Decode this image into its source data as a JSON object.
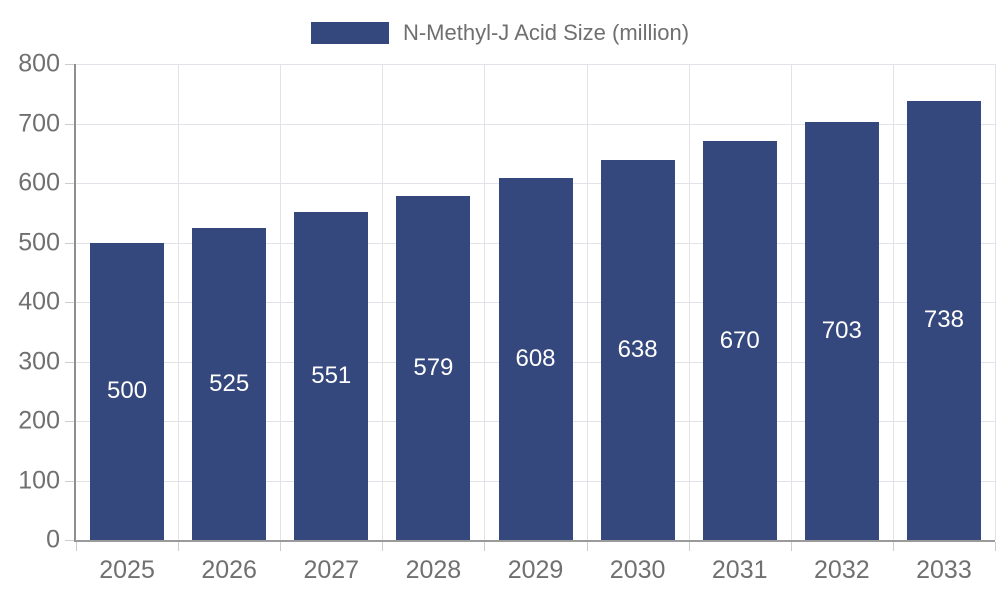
{
  "chart_data": {
    "type": "bar",
    "title": "",
    "categories": [
      "2025",
      "2026",
      "2027",
      "2028",
      "2029",
      "2030",
      "2031",
      "2032",
      "2033"
    ],
    "series": [
      {
        "name": "N-Methyl-J Acid Size (million)",
        "values": [
          500,
          525,
          551,
          579,
          608,
          638,
          670,
          703,
          738
        ]
      }
    ],
    "value_labels": [
      "500",
      "525",
      "551",
      "579",
      "608",
      "638",
      "670",
      "703",
      "738"
    ],
    "xlabel": "",
    "ylabel": "",
    "ylim": [
      0,
      800
    ],
    "ytick_step": 100,
    "ytick_labels": [
      "0",
      "100",
      "200",
      "300",
      "400",
      "500",
      "600",
      "700",
      "800"
    ],
    "grid": true,
    "legend_position": "top-center",
    "colors": {
      "bar": "#35487D",
      "value_label": "#ffffff",
      "gridline": "#e2e2e8",
      "axis_line": "#9a9a9a",
      "tick": "#cccccc",
      "tick_label": "#707070",
      "legend_text": "#6f6f6f",
      "background": "#ffffff"
    },
    "bar_width_fraction": 0.725
  }
}
